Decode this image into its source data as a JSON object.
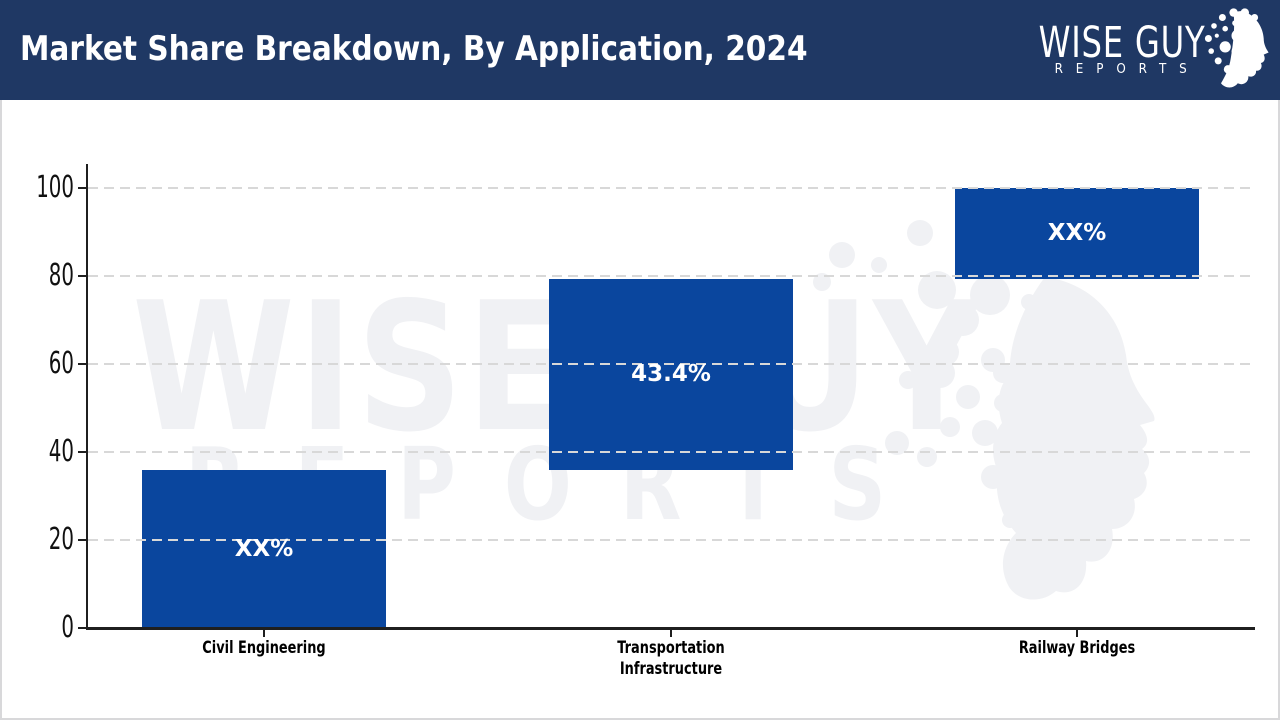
{
  "header": {
    "title": "Market Share Breakdown, By Application, 2024",
    "logo": {
      "line1": "WISE GUY",
      "line2": "REPORTS"
    }
  },
  "watermark": {
    "line1": "WISE GUY",
    "line2": "REPORTS"
  },
  "colors": {
    "header_bg": "#1f3864",
    "bar_blue": "#0a469e",
    "bar_label_white": "#ffffff",
    "grid_gray": "#d8d8d8",
    "axis_dark": "#1f1f1f",
    "watermark_gray": "#f0f1f4"
  },
  "chart_data": {
    "type": "bar",
    "subtype": "waterfall-stacked",
    "title": "Market Share Breakdown, By Application, 2024",
    "xlabel": "",
    "ylabel": "",
    "y_ticks": [
      0,
      20,
      40,
      60,
      80,
      100
    ],
    "ylim": [
      0,
      105
    ],
    "grid": "horizontal-dashed, drawn over bars",
    "legend": null,
    "categories": [
      "Civil Engineering",
      "Transportation Infrastructure",
      "Railway Bridges"
    ],
    "category_lines": [
      [
        "Civil Engineering"
      ],
      [
        "Transportation",
        "Infrastructure"
      ],
      [
        "Railway Bridges"
      ]
    ],
    "segments": [
      {
        "category": "Civil Engineering",
        "start": 0,
        "end": 36,
        "height": 36,
        "value_label": "XX%"
      },
      {
        "category": "Transportation Infrastructure",
        "start": 36,
        "end": 79.4,
        "height": 43.4,
        "value_label": "43.4%"
      },
      {
        "category": "Railway Bridges",
        "start": 79.4,
        "end": 100,
        "height": 20.6,
        "value_label": "XX%"
      }
    ]
  }
}
